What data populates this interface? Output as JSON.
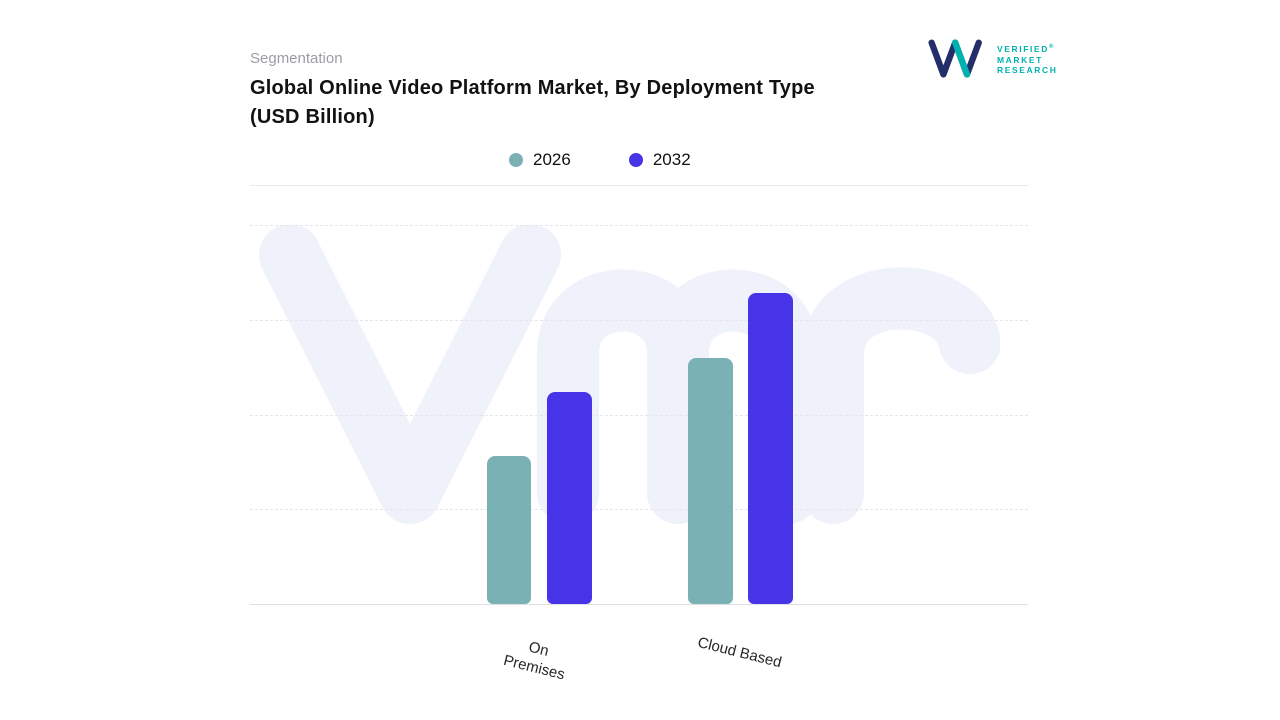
{
  "header": {
    "eyebrow": "Segmentation",
    "title_line1": "Global Online Video Platform Market, By Deployment Type",
    "title_line2": "(USD Billion)"
  },
  "logo": {
    "lines": [
      "VERIFIED",
      "MARKET",
      "RESEARCH"
    ],
    "registered": "®",
    "navy": "#232e6b",
    "teal": "#00b2af"
  },
  "colors": {
    "series_2026": "#7ab1b4",
    "series_2032": "#4834e8",
    "watermark": "#eff1fb",
    "gridline": "#e4e6ea",
    "axis_line": "#dddfe3",
    "eyebrow_text": "#9a9da3",
    "title_text": "#121212"
  },
  "chart_data": {
    "type": "bar",
    "title": "Global Online Video Platform Market, By Deployment Type (USD Billion)",
    "categories": [
      "On Premises",
      "Cloud Based"
    ],
    "series": [
      {
        "name": "2026",
        "color": "#7ab1b4",
        "values": [
          3.9,
          6.5
        ]
      },
      {
        "name": "2032",
        "color": "#4834e8",
        "values": [
          5.6,
          8.2
        ]
      }
    ],
    "xlabel": "",
    "ylabel": "",
    "ylim": [
      0,
      10
    ],
    "grid": "horizontal-dashed",
    "legend_position": "top-center",
    "value_labels_shown": false,
    "y_axis_labels_shown": false,
    "note": "values estimated from bar heights; no numeric axis shown"
  }
}
